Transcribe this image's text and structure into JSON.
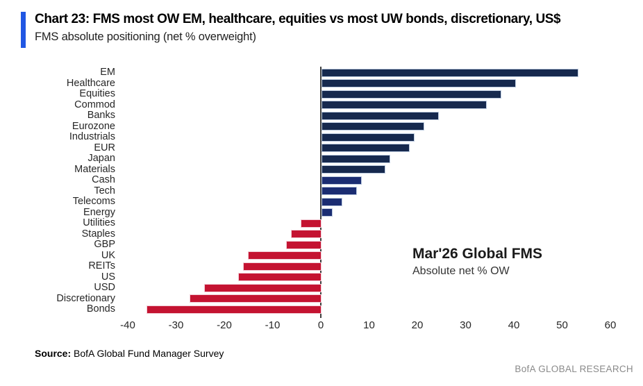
{
  "header": {
    "title": "Chart 23: FMS most OW EM, healthcare, equities vs most UW bonds, discretionary, US$",
    "subtitle": "FMS absolute positioning (net % overweight)",
    "accent_color": "#2157E3"
  },
  "chart_data": {
    "type": "bar",
    "orientation": "horizontal",
    "title": "Chart 23: FMS most OW EM, healthcare, equities vs most UW bonds, discretionary, US$",
    "subtitle": "FMS absolute positioning (net % overweight)",
    "categories": [
      "EM",
      "Healthcare",
      "Equities",
      "Commod",
      "Banks",
      "Eurozone",
      "Industrials",
      "EUR",
      "Japan",
      "Materials",
      "Cash",
      "Tech",
      "Telecoms",
      "Energy",
      "Utilities",
      "Staples",
      "GBP",
      "UK",
      "REITs",
      "US",
      "USD",
      "Discretionary",
      "Bonds"
    ],
    "values": [
      53,
      40,
      37,
      34,
      24,
      21,
      19,
      18,
      14,
      13,
      8,
      7,
      4,
      2,
      -4,
      -6,
      -7,
      -15,
      -16,
      -17,
      -24,
      -27,
      -36
    ],
    "bar_colors": [
      "#16294E",
      "#16294E",
      "#16294E",
      "#16294E",
      "#16294E",
      "#16294E",
      "#16294E",
      "#16294E",
      "#16294E",
      "#16294E",
      "#1B2D72",
      "#1B2D72",
      "#1B2D72",
      "#1B2D72",
      "#C41331",
      "#C41331",
      "#C41331",
      "#C41331",
      "#C41331",
      "#C41331",
      "#C41331",
      "#C41331",
      "#C41331"
    ],
    "colors": {
      "overweight": "#16294E",
      "overweight_highlight": "#1B2D72",
      "underweight": "#C41331",
      "overweight_outline": "#BCCBE0",
      "underweight_outline": "#F2CDD6"
    },
    "xlim": [
      -40,
      60
    ],
    "xticks": [
      -40,
      -30,
      -20,
      -10,
      0,
      10,
      20,
      30,
      40,
      50,
      60
    ],
    "grid": false,
    "legend": false,
    "annotation": {
      "line1": "Mar'26 Global FMS",
      "line2": "Absolute net % OW"
    }
  },
  "footer": {
    "source_label": "Source:",
    "source_text": " BofA Global Fund Manager Survey",
    "brand": "BofA GLOBAL RESEARCH"
  }
}
